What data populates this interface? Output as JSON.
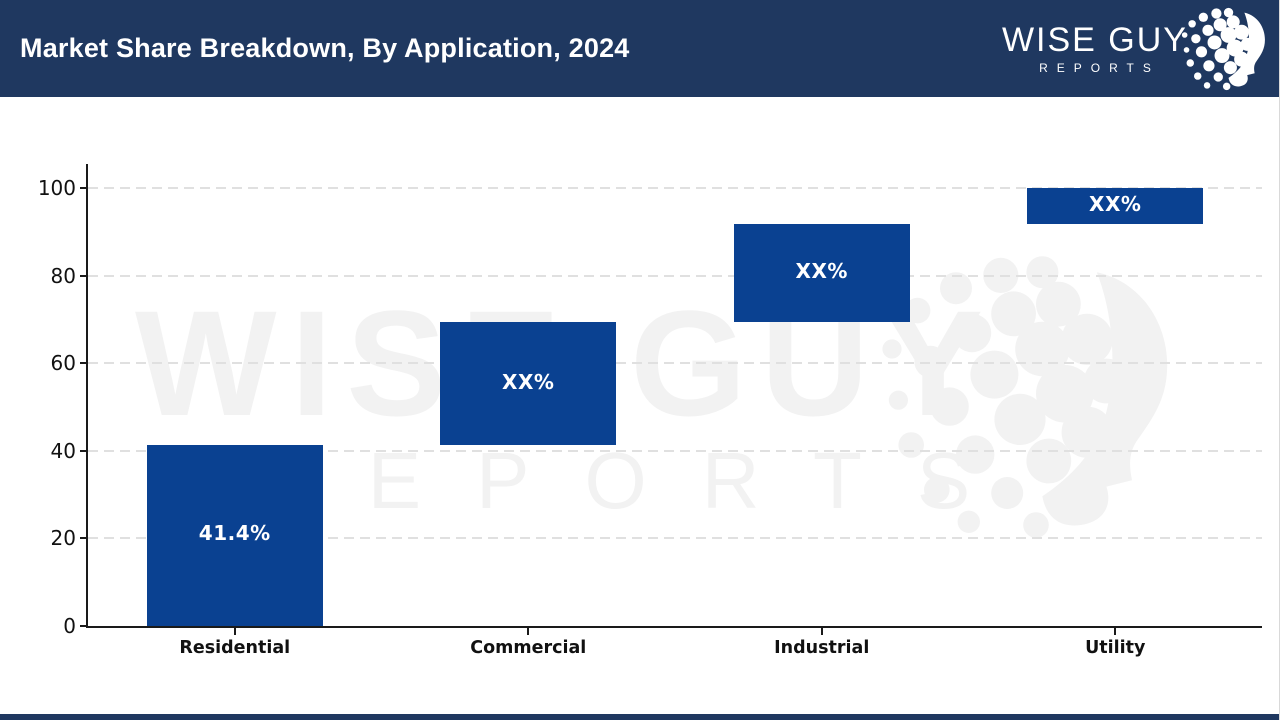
{
  "header": {
    "title": "Market Share Breakdown, By Application, 2024",
    "logo": {
      "name": "WISE GUY",
      "subtitle": "REPORTS"
    }
  },
  "watermark": {
    "line1": "WISE GUY",
    "line2": "REPORTS"
  },
  "colors": {
    "header_bg": "#1f3860",
    "header_text": "#ffffff",
    "footer_bg": "#1f3860",
    "bar": "#0a4191",
    "bar_label": "#ffffff",
    "grid": "#e0e0e0",
    "axis": "#1a1a1a",
    "watermark": "#f2f2f2"
  },
  "chart_data": {
    "type": "bar",
    "subtype": "waterfall",
    "title": "Market Share Breakdown, By Application, 2024",
    "categories": [
      "Residential",
      "Commercial",
      "Industrial",
      "Utility"
    ],
    "segments": [
      {
        "category": "Residential",
        "start": 0,
        "end": 41.4,
        "value": 41.4,
        "label": "41.4%"
      },
      {
        "category": "Commercial",
        "start": 41.4,
        "end": 69.3,
        "value": 27.9,
        "label": "XX%"
      },
      {
        "category": "Industrial",
        "start": 69.3,
        "end": 91.7,
        "value": 22.4,
        "label": "XX%"
      },
      {
        "category": "Utility",
        "start": 91.7,
        "end": 100,
        "value": 8.3,
        "label": "XX%"
      }
    ],
    "xlabel": "",
    "ylabel": "",
    "ylim": [
      0,
      105
    ],
    "yticks": [
      0,
      20,
      40,
      60,
      80,
      100
    ],
    "grid": "horizontal-dashed",
    "legend": "none"
  }
}
